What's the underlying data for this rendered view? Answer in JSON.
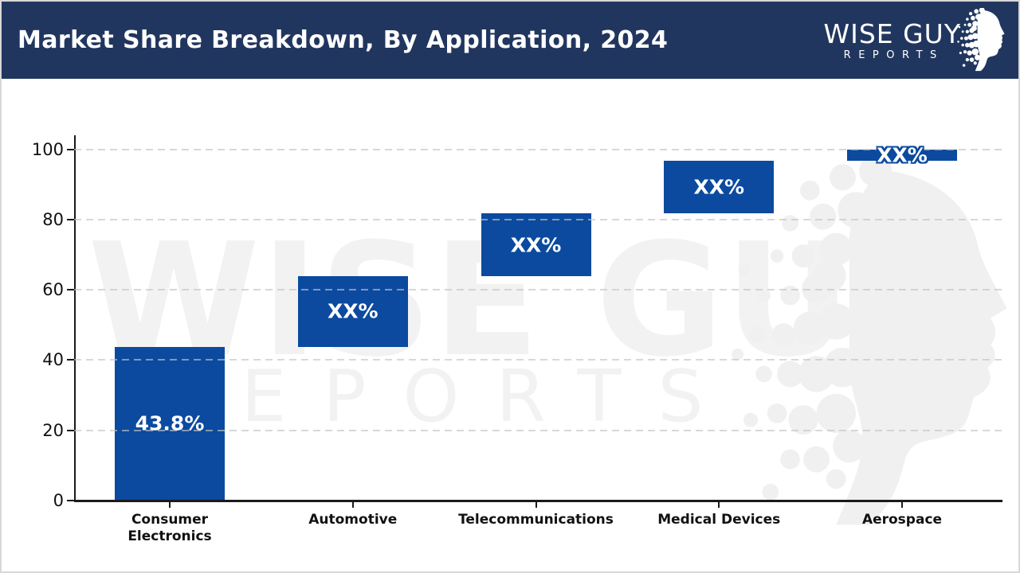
{
  "header": {
    "title": "Market Share Breakdown, By Application, 2024",
    "logo": {
      "name_top": "WISE GUY",
      "name_bottom": "REPORTS"
    }
  },
  "watermark": {
    "text_top": "WISE GUY",
    "text_bottom": "REPORTS"
  },
  "colors": {
    "header_bg": "#21365f",
    "bar": "#0b4a9f",
    "grid": "#c3c3c3",
    "axis": "#1a1a1a",
    "watermark": "#f2f2f2"
  },
  "chart_data": {
    "type": "bar",
    "subtype": "floating-waterfall",
    "title": "Market Share Breakdown, By Application, 2024",
    "categories": [
      "Consumer Electronics",
      "Automotive",
      "Telecommunications",
      "Medical Devices",
      "Aerospace"
    ],
    "tick_labels": [
      "Consumer\nElectronics",
      "Automotive",
      "Telecommunications",
      "Medical Devices",
      "Aerospace"
    ],
    "segments": [
      {
        "category": "Consumer Electronics",
        "start": 0,
        "end": 43.8,
        "label": "43.8%"
      },
      {
        "category": "Automotive",
        "start": 43.8,
        "end": 63.8,
        "label": "XX%"
      },
      {
        "category": "Telecommunications",
        "start": 63.8,
        "end": 81.8,
        "label": "XX%"
      },
      {
        "category": "Medical Devices",
        "start": 81.8,
        "end": 96.8,
        "label": "XX%"
      },
      {
        "category": "Aerospace",
        "start": 96.8,
        "end": 100,
        "label": "XX%"
      }
    ],
    "yticks": [
      0,
      20,
      40,
      60,
      80,
      100
    ],
    "ylim": [
      0,
      104
    ],
    "grid": "dashed-horizontal",
    "legend": "none",
    "bar_color": "#0b4a9f",
    "label_color": "#ffffff"
  }
}
